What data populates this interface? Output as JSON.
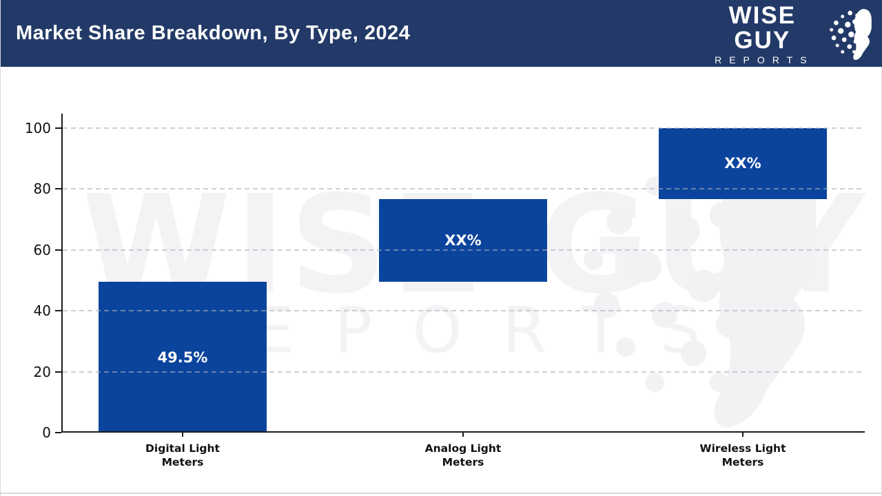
{
  "header": {
    "title": "Market Share Breakdown, By Type, 2024",
    "logo": {
      "line1": "WISE GUY",
      "line2": "REPORTS"
    }
  },
  "watermark": {
    "line1": "WISE GUY",
    "line2": "REPORTS"
  },
  "chart_data": {
    "type": "bar",
    "subtype": "waterfall-breakdown",
    "title": "Market Share Breakdown, By Type, 2024",
    "categories": [
      "Digital Light Meters",
      "Analog Light Meters",
      "Wireless Light Meters"
    ],
    "category_label_lines": [
      [
        "Digital Light",
        "Meters"
      ],
      [
        "Analog Light",
        "Meters"
      ],
      [
        "Wireless Light",
        "Meters"
      ]
    ],
    "bars": [
      {
        "category": "Digital Light Meters",
        "start": 0,
        "end": 49.5,
        "label": "49.5%"
      },
      {
        "category": "Analog Light Meters",
        "start": 49.5,
        "end": 76.7,
        "label": "XX%"
      },
      {
        "category": "Wireless Light Meters",
        "start": 76.7,
        "end": 100,
        "label": "XX%"
      }
    ],
    "xlabel": "",
    "ylabel": "",
    "ylim": [
      0,
      100
    ],
    "yticks": [
      0,
      20,
      40,
      60,
      80,
      100
    ],
    "grid": true,
    "grid_style": "dashed",
    "legend": "none",
    "colors": {
      "bar": "#0b449c",
      "bar_label": "#ffffff",
      "header_bg": "#233a68",
      "gridline": "#d9dce2",
      "axis": "#1a1a1a"
    }
  }
}
